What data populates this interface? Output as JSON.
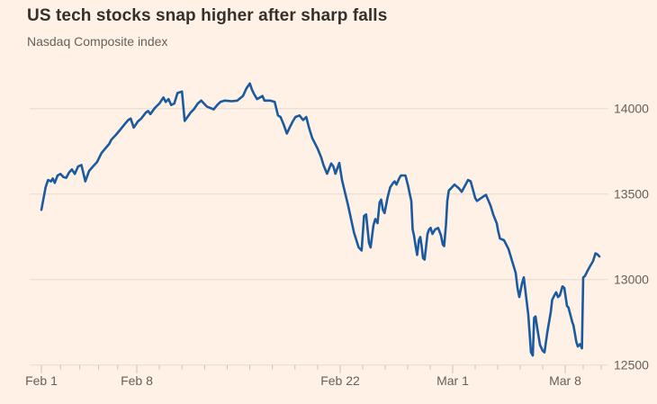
{
  "header": {
    "title": "US tech stocks snap higher after sharp falls",
    "subtitle": "Nasdaq Composite index"
  },
  "colors": {
    "background": "#FFF1E5",
    "line": "#1A5A9E",
    "gridline": "#E6D9CE",
    "tick": "#CCC0B4",
    "axis_text": "#66605C",
    "title_text": "#33302E"
  },
  "chart_data": {
    "type": "line",
    "title": "US tech stocks snap higher after sharp falls",
    "subtitle": "Nasdaq Composite index",
    "legend": "none",
    "grid": "horizontal-only",
    "y_axis": {
      "tick_values": [
        12500,
        13000,
        13500,
        14000
      ],
      "range": [
        12500,
        14160
      ],
      "labels_side": "right",
      "gridlines": true
    },
    "x_axis": {
      "unit": "trading days from Feb 1",
      "domain": [
        0,
        26.2
      ],
      "major_ticks": [
        {
          "day": 0,
          "label": "Feb 1"
        },
        {
          "day": 5,
          "label": "Feb 8"
        },
        {
          "day": 14,
          "label": "Feb 22"
        },
        {
          "day": 19,
          "label": "Mar 1"
        },
        {
          "day": 24,
          "label": "Mar 8"
        }
      ],
      "minor_tick_days": [
        1,
        2,
        3,
        4,
        6,
        7,
        8,
        9,
        10,
        11,
        12,
        13,
        15,
        16,
        17,
        18,
        20,
        21,
        22,
        23,
        25,
        26
      ]
    },
    "series": [
      {
        "name": "Nasdaq Composite index",
        "color": "#1A5A9E",
        "points": [
          [
            0,
            13408
          ],
          [
            0.1,
            13468
          ],
          [
            0.22,
            13540
          ],
          [
            0.35,
            13582
          ],
          [
            0.5,
            13574
          ],
          [
            0.6,
            13591
          ],
          [
            0.7,
            13565
          ],
          [
            0.85,
            13609
          ],
          [
            1.0,
            13618
          ],
          [
            1.15,
            13600
          ],
          [
            1.3,
            13595
          ],
          [
            1.45,
            13626
          ],
          [
            1.6,
            13644
          ],
          [
            1.75,
            13618
          ],
          [
            1.92,
            13661
          ],
          [
            2.1,
            13670
          ],
          [
            2.3,
            13574
          ],
          [
            2.5,
            13635
          ],
          [
            2.7,
            13661
          ],
          [
            2.92,
            13688
          ],
          [
            3.15,
            13740
          ],
          [
            3.35,
            13767
          ],
          [
            3.55,
            13793
          ],
          [
            3.67,
            13819
          ],
          [
            3.9,
            13846
          ],
          [
            4.1,
            13872
          ],
          [
            4.35,
            13907
          ],
          [
            4.55,
            13933
          ],
          [
            4.68,
            13942
          ],
          [
            4.84,
            13889
          ],
          [
            5.05,
            13925
          ],
          [
            5.2,
            13942
          ],
          [
            5.4,
            13977
          ],
          [
            5.5,
            13986
          ],
          [
            5.6,
            13968
          ],
          [
            5.8,
            14004
          ],
          [
            6.0,
            14030
          ],
          [
            6.18,
            14065
          ],
          [
            6.28,
            14039
          ],
          [
            6.4,
            14056
          ],
          [
            6.52,
            14021
          ],
          [
            6.66,
            14030
          ],
          [
            6.8,
            14091
          ],
          [
            7.0,
            14100
          ],
          [
            7.12,
            13928
          ],
          [
            7.38,
            13977
          ],
          [
            7.52,
            13995
          ],
          [
            7.7,
            14030
          ],
          [
            7.85,
            14047
          ],
          [
            8.1,
            14012
          ],
          [
            8.25,
            14004
          ],
          [
            8.4,
            13995
          ],
          [
            8.56,
            14021
          ],
          [
            8.7,
            14039
          ],
          [
            8.9,
            14047
          ],
          [
            9.2,
            14043
          ],
          [
            9.45,
            14047
          ],
          [
            9.7,
            14074
          ],
          [
            9.85,
            14118
          ],
          [
            10.0,
            14147
          ],
          [
            10.1,
            14109
          ],
          [
            10.2,
            14082
          ],
          [
            10.32,
            14056
          ],
          [
            10.45,
            14065
          ],
          [
            10.56,
            14074
          ],
          [
            10.65,
            14047
          ],
          [
            10.9,
            14047
          ],
          [
            11.1,
            14039
          ],
          [
            11.25,
            13960
          ],
          [
            11.36,
            13951
          ],
          [
            11.5,
            13907
          ],
          [
            11.64,
            13854
          ],
          [
            11.76,
            13889
          ],
          [
            11.9,
            13925
          ],
          [
            12.02,
            13951
          ],
          [
            12.2,
            13960
          ],
          [
            12.36,
            13933
          ],
          [
            12.5,
            13951
          ],
          [
            12.62,
            13889
          ],
          [
            12.76,
            13828
          ],
          [
            13.0,
            13766
          ],
          [
            13.16,
            13714
          ],
          [
            13.26,
            13670
          ],
          [
            13.42,
            13619
          ],
          [
            13.6,
            13679
          ],
          [
            13.7,
            13661
          ],
          [
            13.79,
            13619
          ],
          [
            13.96,
            13682
          ],
          [
            14.08,
            13582
          ],
          [
            14.35,
            13433
          ],
          [
            14.61,
            13275
          ],
          [
            14.82,
            13188
          ],
          [
            14.95,
            13170
          ],
          [
            15.06,
            13372
          ],
          [
            15.15,
            13381
          ],
          [
            15.28,
            13214
          ],
          [
            15.35,
            13188
          ],
          [
            15.48,
            13319
          ],
          [
            15.56,
            13354
          ],
          [
            15.66,
            13330
          ],
          [
            15.75,
            13451
          ],
          [
            15.82,
            13468
          ],
          [
            15.9,
            13407
          ],
          [
            15.97,
            13389
          ],
          [
            16.1,
            13477
          ],
          [
            16.22,
            13539
          ],
          [
            16.35,
            13565
          ],
          [
            16.42,
            13574
          ],
          [
            16.5,
            13556
          ],
          [
            16.62,
            13591
          ],
          [
            16.7,
            13609
          ],
          [
            16.9,
            13609
          ],
          [
            17.02,
            13547
          ],
          [
            17.1,
            13495
          ],
          [
            17.16,
            13460
          ],
          [
            17.22,
            13293
          ],
          [
            17.28,
            13258
          ],
          [
            17.35,
            13196
          ],
          [
            17.42,
            13144
          ],
          [
            17.5,
            13232
          ],
          [
            17.56,
            13249
          ],
          [
            17.62,
            13196
          ],
          [
            17.68,
            13126
          ],
          [
            17.75,
            13117
          ],
          [
            17.88,
            13267
          ],
          [
            17.95,
            13293
          ],
          [
            18.02,
            13302
          ],
          [
            18.1,
            13267
          ],
          [
            18.22,
            13293
          ],
          [
            18.35,
            13302
          ],
          [
            18.48,
            13258
          ],
          [
            18.56,
            13205
          ],
          [
            18.62,
            13196
          ],
          [
            18.7,
            13319
          ],
          [
            18.76,
            13460
          ],
          [
            18.83,
            13521
          ],
          [
            18.9,
            13530
          ],
          [
            19.08,
            13556
          ],
          [
            19.28,
            13533
          ],
          [
            19.4,
            13513
          ],
          [
            19.68,
            13582
          ],
          [
            19.8,
            13574
          ],
          [
            20.0,
            13477
          ],
          [
            20.08,
            13460
          ],
          [
            20.36,
            13486
          ],
          [
            20.48,
            13495
          ],
          [
            20.68,
            13433
          ],
          [
            20.8,
            13381
          ],
          [
            20.96,
            13328
          ],
          [
            21.02,
            13284
          ],
          [
            21.1,
            13240
          ],
          [
            21.28,
            13230
          ],
          [
            21.48,
            13179
          ],
          [
            21.6,
            13126
          ],
          [
            21.68,
            13091
          ],
          [
            21.8,
            13039
          ],
          [
            21.88,
            12951
          ],
          [
            21.96,
            12898
          ],
          [
            22.08,
            12977
          ],
          [
            22.16,
            13013
          ],
          [
            22.36,
            12793
          ],
          [
            22.48,
            12574
          ],
          [
            22.56,
            12556
          ],
          [
            22.62,
            12776
          ],
          [
            22.68,
            12784
          ],
          [
            22.76,
            12714
          ],
          [
            22.88,
            12618
          ],
          [
            23.0,
            12583
          ],
          [
            23.08,
            12574
          ],
          [
            23.2,
            12688
          ],
          [
            23.36,
            12811
          ],
          [
            23.42,
            12881
          ],
          [
            23.55,
            12916
          ],
          [
            23.6,
            12925
          ],
          [
            23.68,
            12898
          ],
          [
            23.76,
            12907
          ],
          [
            23.88,
            12960
          ],
          [
            23.96,
            12951
          ],
          [
            24.1,
            12846
          ],
          [
            24.18,
            12837
          ],
          [
            24.4,
            12749
          ],
          [
            24.46,
            12732
          ],
          [
            24.62,
            12635
          ],
          [
            24.7,
            12609
          ],
          [
            24.82,
            12622
          ],
          [
            24.93,
            12598
          ],
          [
            25.0,
            13012
          ],
          [
            25.1,
            13021
          ],
          [
            25.22,
            13047
          ],
          [
            25.36,
            13074
          ],
          [
            25.55,
            13109
          ],
          [
            25.68,
            13153
          ],
          [
            25.78,
            13148
          ],
          [
            25.9,
            13135
          ]
        ]
      }
    ]
  }
}
